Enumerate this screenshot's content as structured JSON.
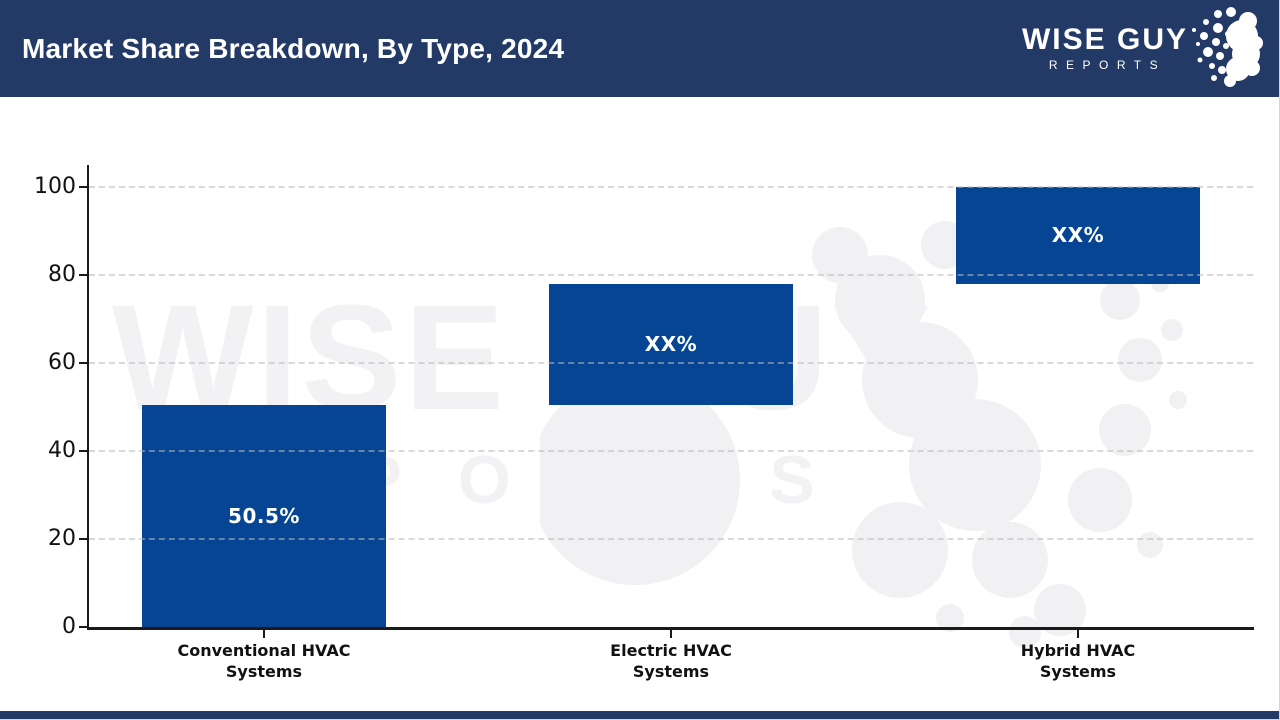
{
  "header": {
    "title": "Market Share Breakdown, By Type, 2024",
    "brand": {
      "name": "WISE GUY",
      "sub": "REPORTS"
    }
  },
  "watermark": {
    "line1": "WISE GUY",
    "line2": "REPORTS"
  },
  "chart_data": {
    "type": "bar",
    "subtype": "floating-waterfall-columns",
    "title": "Market Share Breakdown, By Type, 2024",
    "categories": [
      [
        "Conventional HVAC",
        "Systems"
      ],
      [
        "Electric HVAC",
        "Systems"
      ],
      [
        "Hybrid HVAC",
        "Systems"
      ]
    ],
    "segments": [
      [
        0,
        50.5
      ],
      [
        50.5,
        78
      ],
      [
        78,
        100
      ]
    ],
    "estimated_values": [
      50.5,
      27.5,
      22
    ],
    "bar_labels": [
      "50.5%",
      "XX%",
      "XX%"
    ],
    "yticks": [
      0,
      20,
      40,
      60,
      80,
      100
    ],
    "ylim": [
      0,
      100
    ],
    "xlabel": "",
    "ylabel": "",
    "grid": "horizontal-dashed",
    "legend": "none",
    "bar_color": "#054593",
    "label_color": "#ffffff"
  },
  "colors": {
    "header_bg": "#233A66",
    "bar": "#054593",
    "watermark": "#F2F2F4",
    "axis": "#1a1a1a",
    "grid": "#bcbcbc"
  }
}
